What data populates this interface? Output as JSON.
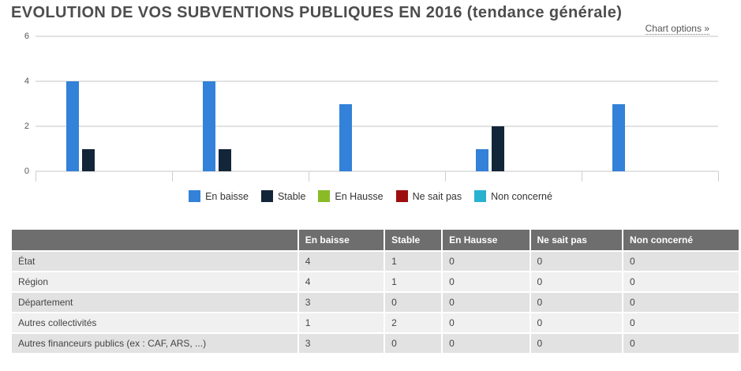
{
  "header": {
    "title": "EVOLUTION DE VOS SUBVENTIONS PUBLIQUES EN 2016 (tendance générale)",
    "chart_options_label": "Chart options »"
  },
  "colors": {
    "en_baisse": "#3381d8",
    "stable": "#132538",
    "en_hausse": "#8abb25",
    "ne_sait_pas": "#9e0e0e",
    "non_concerne": "#29b2d0",
    "gridline": "#e2e2e2",
    "table_header_bg": "#6e6e6e"
  },
  "chart_data": {
    "type": "bar",
    "categories": [
      "État",
      "Région",
      "Département",
      "Autres collectivités",
      "Autres financeurs publics (ex : CAF, ARS, ...)"
    ],
    "series": [
      {
        "name": "En baisse",
        "color": "#3381d8",
        "values": [
          4,
          4,
          3,
          1,
          3
        ]
      },
      {
        "name": "Stable",
        "color": "#132538",
        "values": [
          1,
          1,
          0,
          2,
          0
        ]
      },
      {
        "name": "En Hausse",
        "color": "#8abb25",
        "values": [
          0,
          0,
          0,
          0,
          0
        ]
      },
      {
        "name": "Ne sait pas",
        "color": "#9e0e0e",
        "values": [
          0,
          0,
          0,
          0,
          0
        ]
      },
      {
        "name": "Non concerné",
        "color": "#29b2d0",
        "values": [
          0,
          0,
          0,
          0,
          0
        ]
      }
    ],
    "title": "EVOLUTION DE VOS SUBVENTIONS PUBLIQUES EN 2016 (tendance générale)",
    "xlabel": "",
    "ylabel": "",
    "ylim": [
      0,
      6
    ],
    "yticks": [
      0,
      2,
      4,
      6
    ],
    "grid": true,
    "legend_position": "bottom-center"
  },
  "table": {
    "columns": [
      "",
      "En baisse",
      "Stable",
      "En Hausse",
      "Ne sait pas",
      "Non concerné"
    ],
    "rows": [
      {
        "label": "État",
        "values": [
          "4",
          "1",
          "0",
          "0",
          "0"
        ]
      },
      {
        "label": "Région",
        "values": [
          "4",
          "1",
          "0",
          "0",
          "0"
        ]
      },
      {
        "label": "Département",
        "values": [
          "3",
          "0",
          "0",
          "0",
          "0"
        ]
      },
      {
        "label": "Autres collectivités",
        "values": [
          "1",
          "2",
          "0",
          "0",
          "0"
        ]
      },
      {
        "label": "Autres financeurs publics (ex : CAF, ARS, ...)",
        "values": [
          "3",
          "0",
          "0",
          "0",
          "0"
        ]
      }
    ]
  }
}
